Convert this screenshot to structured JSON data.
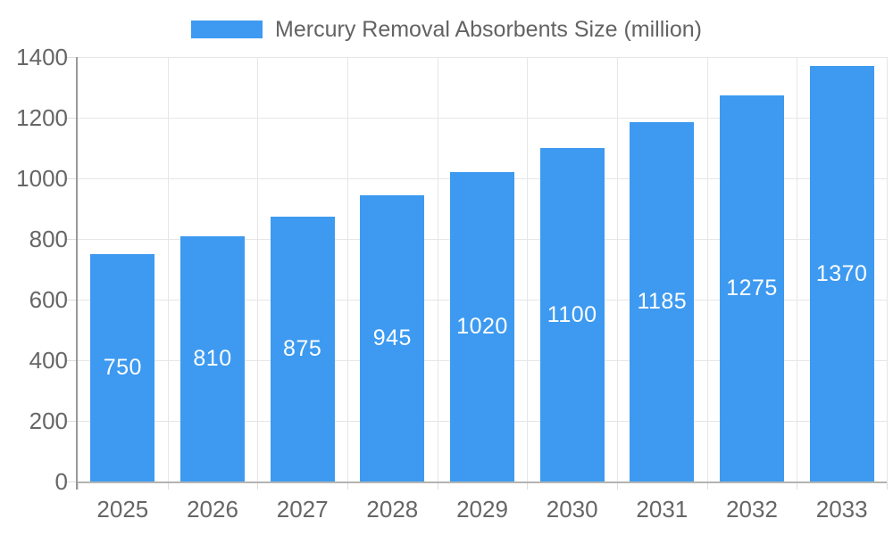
{
  "legend": {
    "label": "Mercury Removal Absorbents Size (million)"
  },
  "chart_data": {
    "type": "bar",
    "title": "Mercury Removal Absorbents Size (million)",
    "categories": [
      "2025",
      "2026",
      "2027",
      "2028",
      "2029",
      "2030",
      "2031",
      "2032",
      "2033"
    ],
    "values": [
      750,
      810,
      875,
      945,
      1020,
      1100,
      1185,
      1275,
      1370
    ],
    "series": [
      {
        "name": "Mercury Removal Absorbents Size (million)",
        "values": [
          750,
          810,
          875,
          945,
          1020,
          1100,
          1185,
          1275,
          1370
        ]
      }
    ],
    "xlabel": "",
    "ylabel": "",
    "ylim": [
      0,
      1400
    ],
    "yticks": [
      0,
      200,
      400,
      600,
      800,
      1000,
      1200,
      1400
    ],
    "grid": true,
    "legend_position": "top",
    "bar_color": "#3D9AF0",
    "value_label_color": "#FFFFFF",
    "axis_text_color": "#666666",
    "gridline_color": "#E6E6E6",
    "tick_mark_color": "#DDDDDD",
    "x_axis_line_color": "#B3B3B3",
    "y_axis_line_color": "#999999",
    "background_color": "#FFFFFF"
  }
}
